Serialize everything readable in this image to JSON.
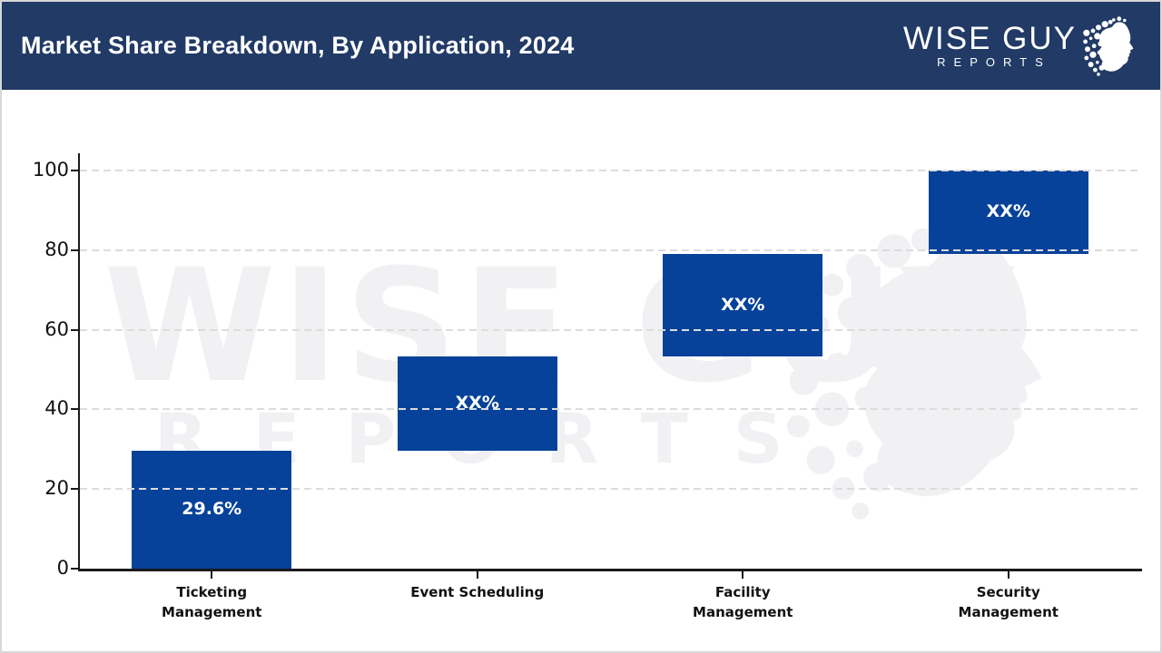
{
  "header": {
    "title": "Market Share Breakdown, By Application, 2024",
    "logo": {
      "line1": "WISE GUY",
      "line2": "REPORTS"
    }
  },
  "watermark": {
    "line1": "WISE GUY",
    "line2": "REPORTS"
  },
  "colors": {
    "header_bg": "#213a66",
    "bar": "#064299",
    "bar_label": "#ffffff",
    "grid": "#dcdcdc",
    "axis": "#1a1a1a",
    "watermark": "#f1f1f4"
  },
  "chart_data": {
    "type": "bar",
    "subtype": "waterfall",
    "title": "Market Share Breakdown, By Application, 2024",
    "categories": [
      "Ticketing Management",
      "Event Scheduling",
      "Facility Management",
      "Security Management"
    ],
    "category_lines": [
      [
        "Ticketing",
        "Management"
      ],
      [
        "Event Scheduling"
      ],
      [
        "Facility",
        "Management"
      ],
      [
        "Security",
        "Management"
      ]
    ],
    "series": [
      {
        "name": "Market Share (%)",
        "segments": [
          {
            "category": "Ticketing Management",
            "start": 0,
            "end": 29.6,
            "label": "29.6%"
          },
          {
            "category": "Event Scheduling",
            "start": 29.6,
            "end": 53.2,
            "label": "XX%"
          },
          {
            "category": "Facility Management",
            "start": 53.2,
            "end": 79.0,
            "label": "XX%"
          },
          {
            "category": "Security Management",
            "start": 79.0,
            "end": 100,
            "label": "XX%"
          }
        ]
      }
    ],
    "xlabel": "",
    "ylabel": "",
    "ylim": [
      0,
      100
    ],
    "yticks": [
      0,
      20,
      40,
      60,
      80,
      100
    ],
    "grid": "horizontal-dashed",
    "grid_above_bars": true,
    "legend": "none"
  }
}
